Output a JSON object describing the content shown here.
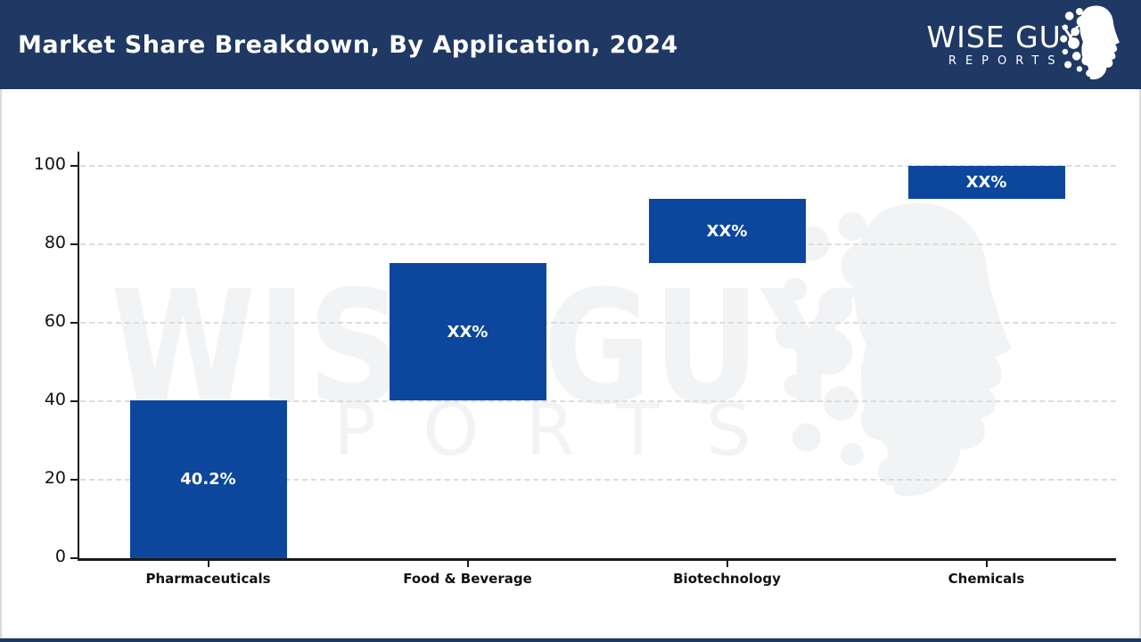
{
  "header": {
    "title": "Market Share Breakdown, By Application, 2024"
  },
  "logo": {
    "name_top": "WISE GUY",
    "name_bottom": "REPORTS"
  },
  "watermark": {
    "text_top": "WISE GUY",
    "text_bottom": "REPORTS"
  },
  "chart_data": {
    "type": "bar",
    "subtype": "waterfall",
    "title": "Market Share Breakdown, By Application, 2024",
    "categories": [
      "Pharmaceuticals",
      "Food & Beverage",
      "Biotechnology",
      "Chemicals"
    ],
    "bars": [
      {
        "category": "Pharmaceuticals",
        "start": 0,
        "end": 40.2,
        "label": "40.2%"
      },
      {
        "category": "Food & Beverage",
        "start": 40.2,
        "end": 75.2,
        "label": "XX%"
      },
      {
        "category": "Biotechnology",
        "start": 75.2,
        "end": 91.6,
        "label": "XX%"
      },
      {
        "category": "Chemicals",
        "start": 91.6,
        "end": 100,
        "label": "XX%"
      }
    ],
    "yticks": [
      0,
      20,
      40,
      60,
      80,
      100
    ],
    "ylim": [
      0,
      104
    ],
    "xlabel": "",
    "ylabel": "",
    "grid": "horizontal-dashed",
    "legend": "none"
  },
  "colors": {
    "header_bg": "#1f3864",
    "footer_bg": "#1f3864",
    "bar": "#0c479d",
    "bar_label": "#ffffff",
    "axis": "#1a1a1a",
    "tick_label": "#111111",
    "gridline": "#dcdcdc",
    "watermark": "#f2f3f5"
  }
}
